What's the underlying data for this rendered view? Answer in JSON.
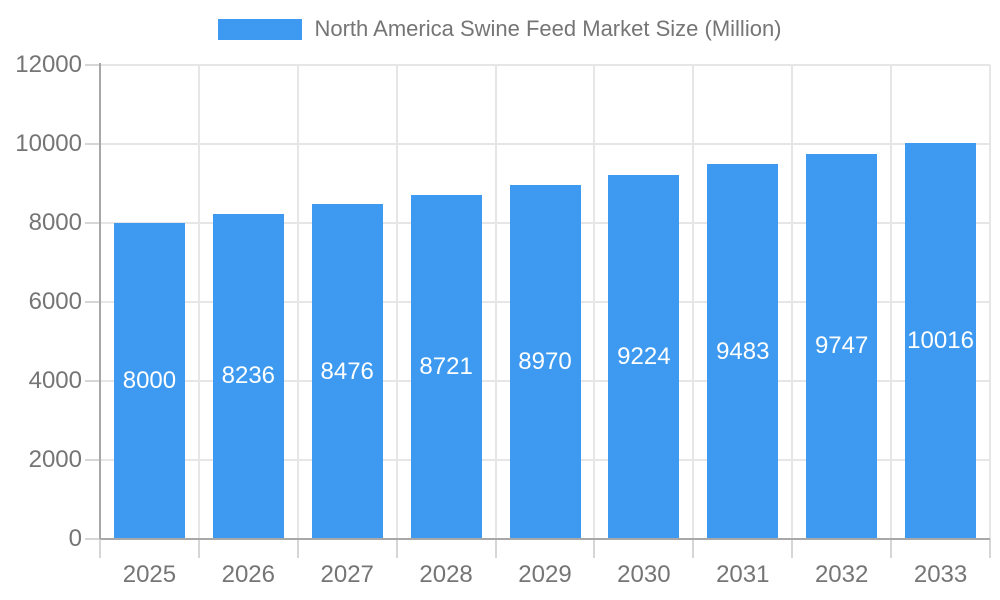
{
  "chart_data": {
    "type": "bar",
    "title": "",
    "categories": [
      "2025",
      "2026",
      "2027",
      "2028",
      "2029",
      "2030",
      "2031",
      "2032",
      "2033"
    ],
    "series": [
      {
        "name": "North America Swine Feed Market Size (Million)",
        "values": [
          8000,
          8236,
          8476,
          8721,
          8970,
          9224,
          9483,
          9747,
          10016
        ]
      }
    ],
    "ylim": [
      0,
      12000
    ],
    "yticks": [
      0,
      2000,
      4000,
      6000,
      8000,
      10000,
      12000
    ],
    "grid": true,
    "legend_position": "top",
    "value_labels": "inside-center"
  },
  "colors": {
    "bar": "#3d9af0",
    "bar_label": "#ffffff",
    "axis_text": "#757575",
    "axis_line": "#a8a8a8",
    "grid_line": "#e6e6e6",
    "tick_line": "#d6d6d6",
    "background": "#ffffff"
  }
}
